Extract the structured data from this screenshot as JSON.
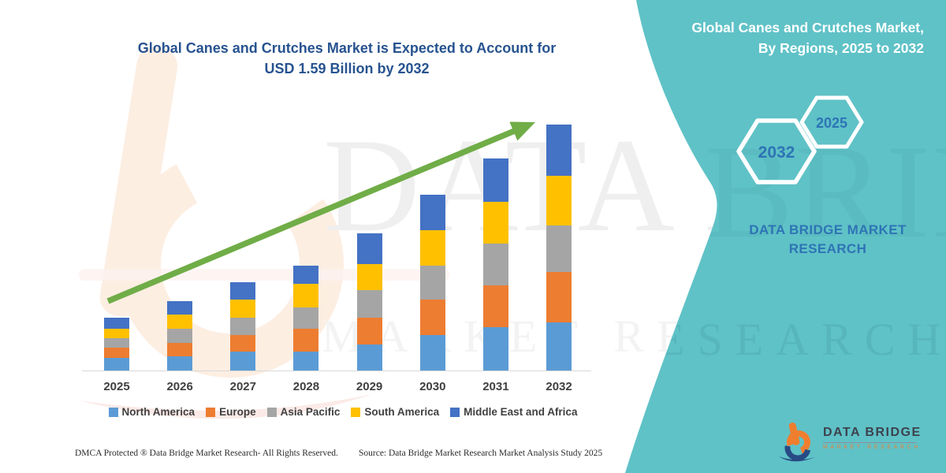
{
  "title": {
    "line1": "Global Canes and Crutches Market is Expected to Account for",
    "line2": "USD 1.59 Billion by 2032"
  },
  "side_panel": {
    "title_line1": "Global Canes and Crutches Market,",
    "title_line2": "By Regions, 2025 to 2032",
    "year_badges": [
      "2032",
      "2025"
    ],
    "brand_line1": "DATA BRIDGE MARKET",
    "brand_line2": "RESEARCH"
  },
  "chart_data": {
    "type": "bar",
    "stacked": true,
    "title": "Global Canes and Crutches Market is Expected to Account for USD 1.59 Billion by 2032",
    "unit": "USD Billion",
    "categories": [
      "2025",
      "2026",
      "2027",
      "2028",
      "2029",
      "2030",
      "2031",
      "2032"
    ],
    "series": [
      {
        "name": "North America",
        "color": "#5b9bd5",
        "values": [
          0.08,
          0.09,
          0.12,
          0.12,
          0.17,
          0.23,
          0.28,
          0.31
        ]
      },
      {
        "name": "Europe",
        "color": "#ed7d31",
        "values": [
          0.07,
          0.09,
          0.11,
          0.15,
          0.17,
          0.23,
          0.27,
          0.33
        ]
      },
      {
        "name": "Asia Pacific",
        "color": "#a5a5a5",
        "values": [
          0.06,
          0.09,
          0.11,
          0.14,
          0.18,
          0.22,
          0.27,
          0.3
        ]
      },
      {
        "name": "South America",
        "color": "#ffc000",
        "values": [
          0.06,
          0.09,
          0.12,
          0.15,
          0.17,
          0.23,
          0.27,
          0.32
        ]
      },
      {
        "name": "Middle East and Africa",
        "color": "#4472c4",
        "values": [
          0.07,
          0.09,
          0.11,
          0.12,
          0.2,
          0.23,
          0.28,
          0.33
        ]
      }
    ],
    "totals_estimated": [
      0.34,
      0.45,
      0.57,
      0.68,
      0.89,
      1.14,
      1.37,
      1.59
    ],
    "ylim": [
      0,
      1.7
    ],
    "gridlines": false,
    "axis_labels_visible": false,
    "legend_position": "bottom",
    "annotations": [
      "green upward trend arrow from 2025 to 2032"
    ]
  },
  "footer": {
    "left_text": "DMCA Protected ® Data Bridge Market Research-  All Rights Reserved.",
    "source_text": "Source: Data Bridge Market Research  Market Analysis Study 2025"
  },
  "logo": {
    "name": "DATA BRIDGE",
    "subtitle": "MARKET RESEARCH"
  },
  "watermark": {
    "text_large": "DATA BRIDGE",
    "text_row": "MARKET RESEARCH"
  },
  "colors": {
    "panel_teal": "#5fc2c7",
    "title_blue": "#27538f",
    "accent_blue": "#2e74b5",
    "arrow_green": "#70ad47",
    "axis_gray": "#d9d9d9",
    "logo_orange": "#ef7e2f",
    "logo_navy": "#274b85"
  }
}
